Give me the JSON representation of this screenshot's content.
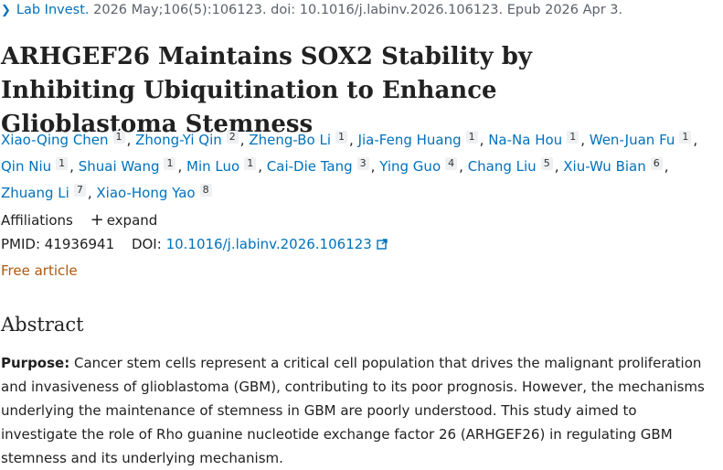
{
  "citation": {
    "journal": "Lab Invest.",
    "details": "2026 May;106(5):106123. doi: 10.1016/j.labinv.2026.106123. Epub 2026 Apr 3."
  },
  "title": "ARHGEF26 Maintains SOX2 Stability by Inhibiting Ubiquitination to Enhance Glioblastoma Stemness",
  "authors": [
    {
      "name": "Xiao-Qing Chen",
      "sup": "1",
      "sep": ","
    },
    {
      "name": "Zhong-Yi Qin",
      "sup": "2",
      "sep": ","
    },
    {
      "name": "Zheng-Bo Li",
      "sup": "1",
      "sep": ","
    },
    {
      "name": "Jia-Feng Huang",
      "sup": "1",
      "sep": ","
    },
    {
      "name": "Na-Na Hou",
      "sup": "1",
      "sep": ","
    },
    {
      "name": "Wen-Juan Fu",
      "sup": "1",
      "sep": ","
    },
    {
      "name": "Qin Niu",
      "sup": "1",
      "sep": ","
    },
    {
      "name": "Shuai Wang",
      "sup": "1",
      "sep": ","
    },
    {
      "name": "Min Luo",
      "sup": "1",
      "sep": ","
    },
    {
      "name": "Cai-Die Tang",
      "sup": "3",
      "sep": ","
    },
    {
      "name": "Ying Guo",
      "sup": "4",
      "sep": ","
    },
    {
      "name": "Chang Liu",
      "sup": "5",
      "sep": ","
    },
    {
      "name": "Xiu-Wu Bian",
      "sup": "6",
      "sep": ","
    },
    {
      "name": "Zhuang Li",
      "sup": "7",
      "sep": ","
    },
    {
      "name": "Xiao-Hong Yao",
      "sup": "8"
    }
  ],
  "affiliations": {
    "label": "Affiliations",
    "expand": "expand"
  },
  "identifiers": {
    "pmid_label": "PMID:",
    "pmid": "41936941",
    "doi_label": "DOI:",
    "doi": "10.1016/j.labinv.2026.106123"
  },
  "free_article": "Free article",
  "abstract": {
    "heading": "Abstract",
    "purpose_label": "Purpose:",
    "purpose_text": "Cancer stem cells represent a critical cell population that drives the malignant proliferation and invasiveness of glioblastoma (GBM), contributing to its poor prognosis. However, the mechanisms underlying the maintenance of stemness in GBM are poorly understood. This study aimed to investigate the role of Rho guanine nucleotide exchange factor 26 (ARHGEF26) in regulating GBM stemness and its underlying mechanism."
  }
}
